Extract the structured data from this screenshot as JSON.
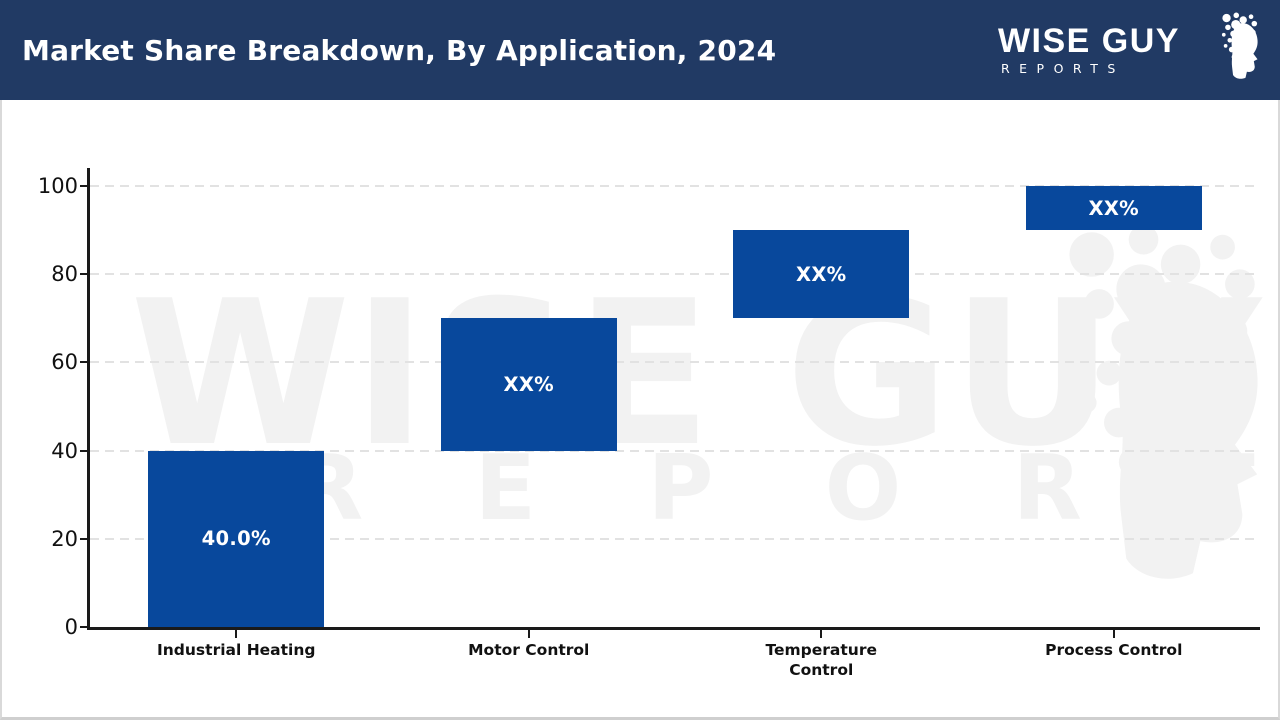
{
  "header": {
    "title": "Market Share Breakdown, By Application, 2024",
    "logo": {
      "line1": "WISE GUY",
      "line2": "REPORTS",
      "icon": "dotted-head-profile-icon"
    }
  },
  "watermark": {
    "line1": "WISE GUY",
    "line2": "REPORTS",
    "icon": "dotted-head-profile-icon"
  },
  "chart_data": {
    "type": "bar",
    "subtype": "waterfall",
    "title": "Market Share Breakdown, By Application, 2024",
    "categories": [
      "Industrial Heating",
      "Motor Control",
      "Temperature\nControl",
      "Process Control"
    ],
    "series": [
      {
        "name": "Market Share (%)",
        "starts": [
          0,
          40,
          70,
          90
        ],
        "ends": [
          40,
          70,
          90,
          100
        ],
        "values": [
          40,
          30,
          20,
          10
        ]
      }
    ],
    "bar_labels": [
      "40.0%",
      "XX%",
      "XX%",
      "XX%"
    ],
    "xlabel": "",
    "ylabel": "",
    "ylim": [
      0,
      100
    ],
    "yticks": [
      0,
      20,
      40,
      60,
      80,
      100
    ],
    "grid": "horizontal-dashed",
    "legend": "none",
    "bar_color": "#08489c",
    "bar_label_color": "#ffffff"
  },
  "colors": {
    "header_bg": "#213a64",
    "bar": "#08489c",
    "grid": "#e2e2e2",
    "axis": "#1a1a1a",
    "watermark": "#f2f2f2",
    "page_border": "#d9d9d9"
  }
}
